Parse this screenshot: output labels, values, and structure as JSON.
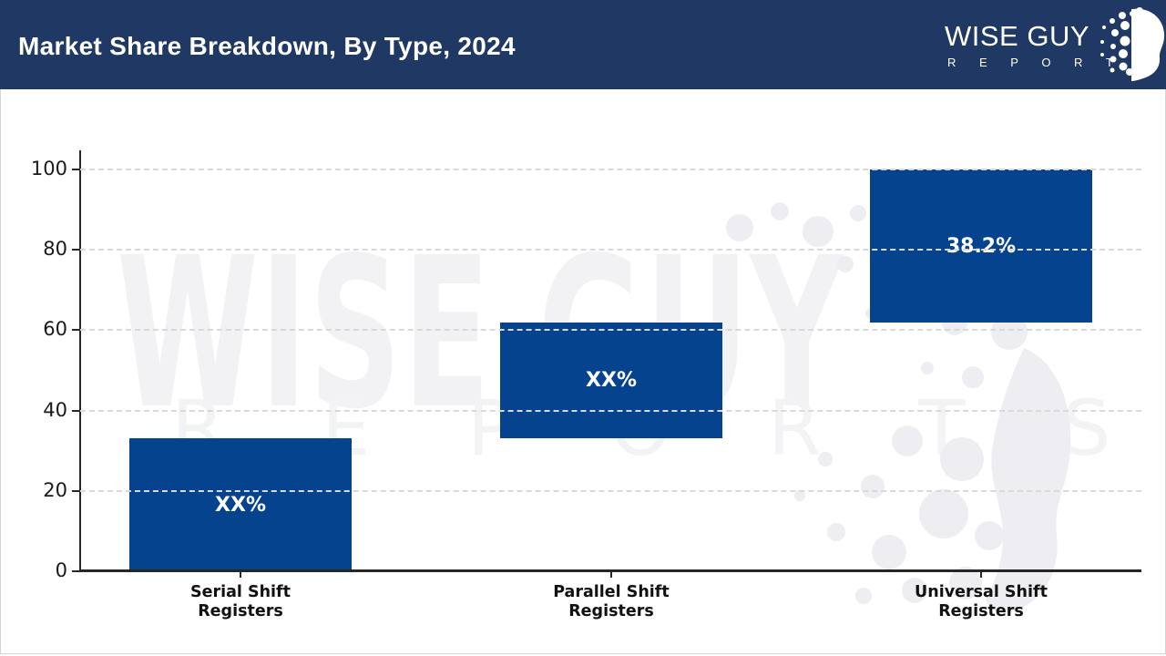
{
  "header": {
    "title": "Market Share Breakdown, By Type, 2024",
    "logo": {
      "name_line": "WISE GUY",
      "sub_line": "R E P O R T S"
    }
  },
  "watermark": {
    "name_line": "WISE GUY",
    "sub_line": "R E P O R T S"
  },
  "colors": {
    "header_bg": "#1f3864",
    "bar_fill": "#05438f",
    "grid_line": "#d9d9d9",
    "axis_line": "#262626",
    "bar_label_text": "#ffffff",
    "tick_text": "#1a1a1a",
    "watermark_text": "#f2f2f5"
  },
  "chart_data": {
    "type": "bar",
    "subtype": "waterfall-segments",
    "title": "Market Share Breakdown, By Type, 2024",
    "xlabel": "",
    "ylabel": "",
    "ylim": [
      0,
      100
    ],
    "yticks": [
      0,
      20,
      40,
      60,
      80,
      100
    ],
    "grid": "horizontal dashed",
    "legend": "none",
    "categories": [
      "Serial Shift Registers",
      "Parallel Shift Registers",
      "Universal Shift Registers"
    ],
    "segments": [
      {
        "category": "Serial Shift Registers",
        "from": 0,
        "to": 33,
        "label": "XX%"
      },
      {
        "category": "Parallel Shift Registers",
        "from": 33,
        "to": 61.8,
        "label": "XX%"
      },
      {
        "category": "Universal Shift Registers",
        "from": 61.8,
        "to": 100,
        "label": "38.2%"
      }
    ]
  }
}
